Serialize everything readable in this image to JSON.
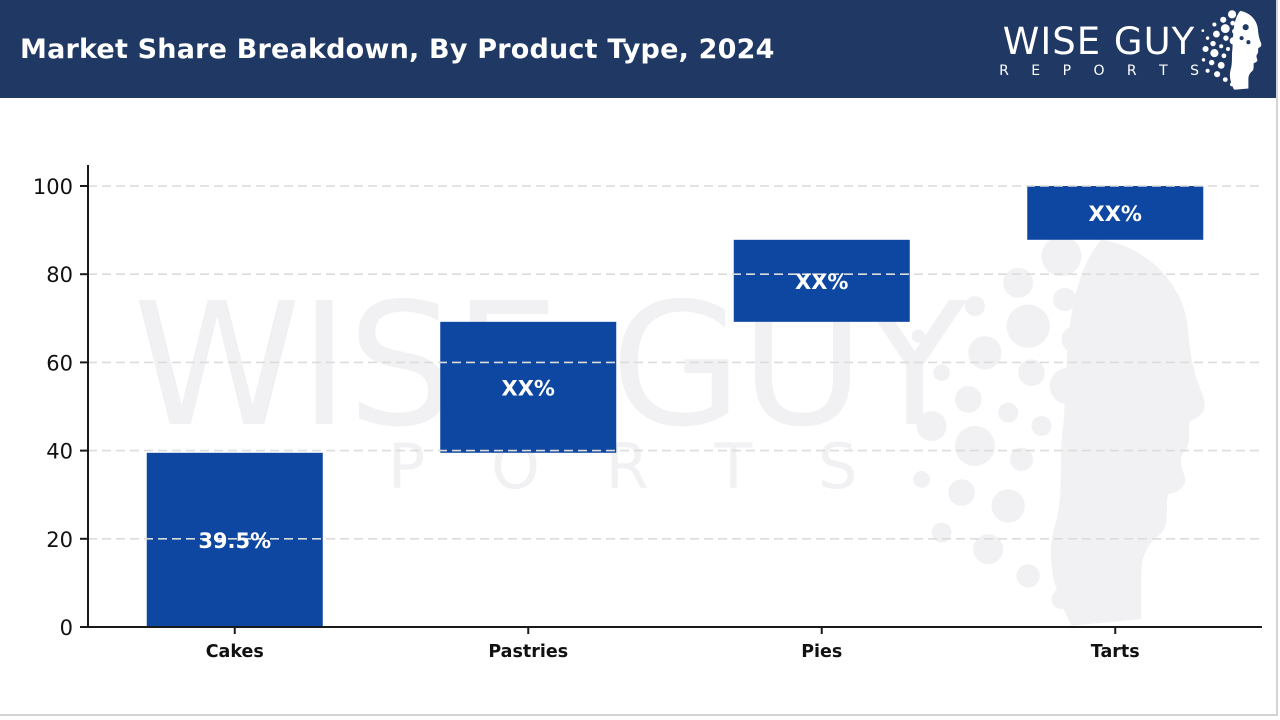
{
  "header": {
    "title": "Market Share Breakdown, By Product Type, 2024"
  },
  "logo": {
    "line1": "WISE GUY",
    "line2": "R E P O R T S",
    "icon": "face-profile-dots-icon"
  },
  "watermark": {
    "line1": "WISE GUY",
    "line2": "P O R T S"
  },
  "colors": {
    "header_bg": "#1f3864",
    "bar_fill": "#0d47a1",
    "bar_label": "#ffffff",
    "axis": "#1a1a1a",
    "tick_label": "#111111",
    "grid": "#dcdcdc",
    "watermark": "#f1f1f3"
  },
  "chart_data": {
    "type": "bar",
    "subtype": "waterfall",
    "title": "Market Share Breakdown, By Product Type, 2024",
    "xlabel": "",
    "ylabel": "",
    "categories": [
      "Cakes",
      "Pastries",
      "Pies",
      "Tarts"
    ],
    "segments": [
      {
        "category": "Cakes",
        "start": 0,
        "end": 39.5,
        "label": "39.5%"
      },
      {
        "category": "Pastries",
        "start": 39.5,
        "end": 69.2,
        "label": "XX%"
      },
      {
        "category": "Pies",
        "start": 69.2,
        "end": 87.8,
        "label": "XX%"
      },
      {
        "category": "Tarts",
        "start": 87.8,
        "end": 100,
        "label": "XX%"
      }
    ],
    "ylim": [
      0,
      100
    ],
    "yticks": [
      0,
      20,
      40,
      60,
      80,
      100
    ],
    "grid": true,
    "grid_style": "dashed",
    "grid_above_bars": true,
    "legend": false
  }
}
